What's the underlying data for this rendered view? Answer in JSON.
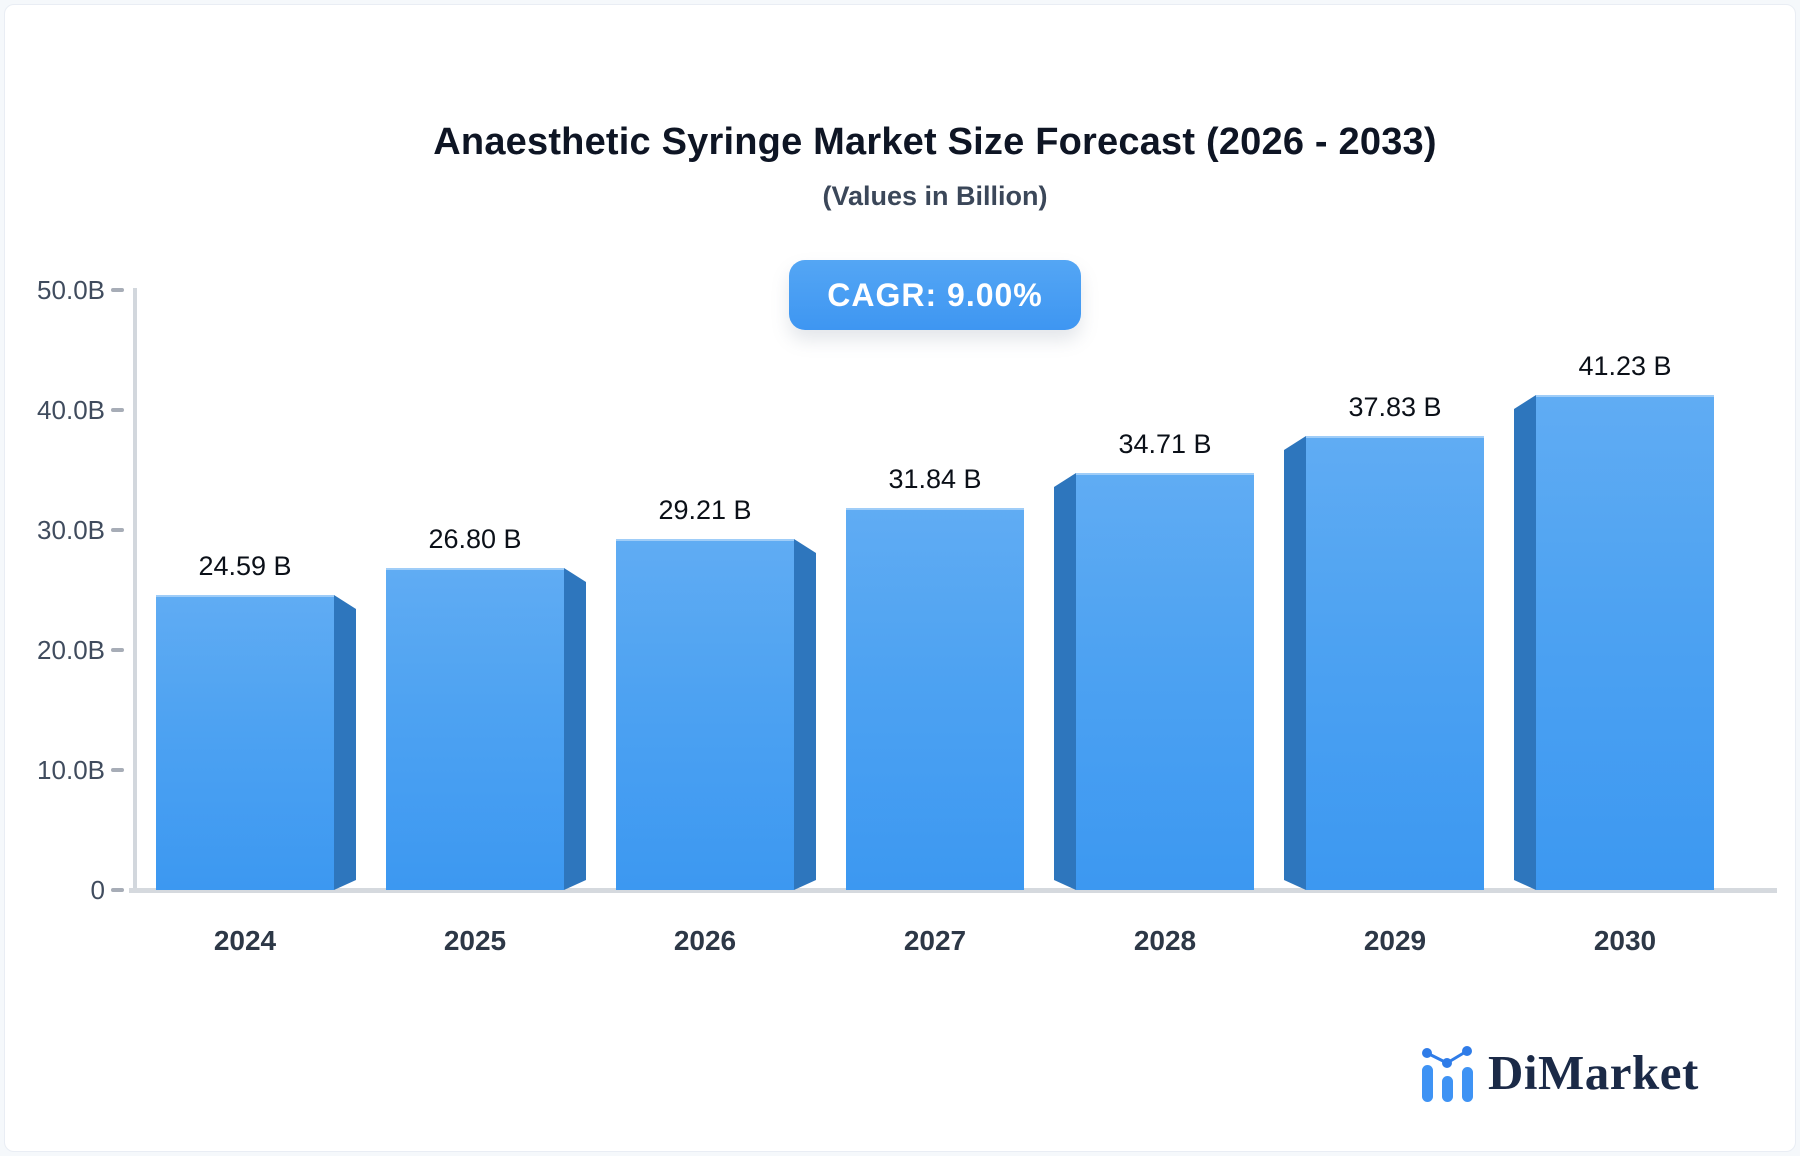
{
  "header": {
    "title": "Anaesthetic Syringe Market Size Forecast (2026 - 2033)",
    "subtitle": "(Values in Billion)",
    "cagr_label": "CAGR: 9.00%"
  },
  "chart_data": {
    "type": "bar",
    "title": "Anaesthetic Syringe Market Size Forecast (2026 - 2033)",
    "subtitle": "(Values in Billion)",
    "annotation": "CAGR: 9.00%",
    "categories": [
      "2024",
      "2025",
      "2026",
      "2027",
      "2028",
      "2029",
      "2030"
    ],
    "values": [
      24.59,
      26.8,
      29.21,
      31.84,
      34.71,
      37.83,
      41.23
    ],
    "value_labels": [
      "24.59 B",
      "26.80 B",
      "29.21 B",
      "31.84 B",
      "34.71 B",
      "37.83 B",
      "41.23 B"
    ],
    "unit": "Billion",
    "ylim": [
      0,
      50
    ],
    "yticks": [
      {
        "label": "50.0B",
        "value": 50
      },
      {
        "label": "40.0B",
        "value": 40
      },
      {
        "label": "30.0B",
        "value": 30
      },
      {
        "label": "20.0B",
        "value": 20
      },
      {
        "label": "10.0B",
        "value": 10
      },
      {
        "label": "0",
        "value": 0
      }
    ],
    "grid": false,
    "legend": false,
    "bar_style": "3d-perspective",
    "colors": {
      "bar_face_top": "#60acf3",
      "bar_face_bottom": "#3c98f1",
      "bar_side": "#2e76bd",
      "badge_blue": "#479ff3",
      "axis_line": "#d3d8de",
      "tick": "#a7adb7",
      "y_label": "#404c5e",
      "x_label": "#2d3847",
      "value_label": "#0b1018",
      "title": "#0e1524",
      "subtitle": "#3b4759"
    }
  },
  "branding": {
    "logo_text": "DiMarket",
    "logo_icon": "mini-bar-line-chart-icon",
    "logo_icon_bar_color": "#3f93f4",
    "logo_icon_dot_color": "#2f7ce8",
    "logo_text_color": "#1b2a47"
  }
}
